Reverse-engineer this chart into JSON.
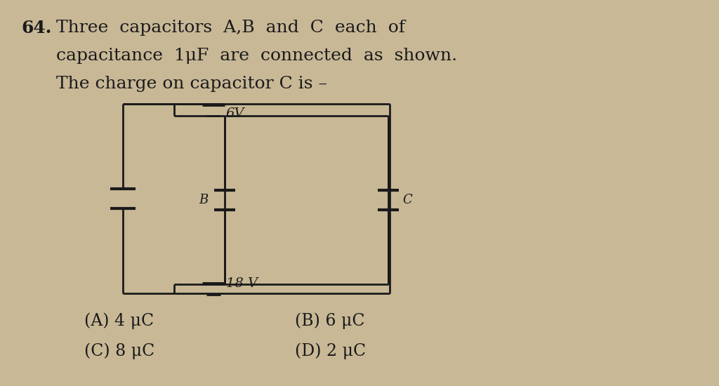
{
  "bg_color": "#c8b896",
  "text_color": "#1a1a1a",
  "circuit_color": "#1a1a1a",
  "question_number": "64.",
  "q_line1": "Three  capacitors  A,B  and  C  each  of",
  "q_line2": "capacitance  1μF  are  connected  as  shown.",
  "q_line3": "The charge on capacitor C is –",
  "voltage_top": "6V",
  "voltage_bot": "18 V",
  "label_B": "B",
  "label_C": "C",
  "choices": [
    {
      "label": "(A) 4 μC",
      "col": 0,
      "row": 0
    },
    {
      "label": "(B) 6 μC",
      "col": 1,
      "row": 0
    },
    {
      "label": "(C) 8 μC",
      "col": 0,
      "row": 1
    },
    {
      "label": "(D) 2 μC",
      "col": 1,
      "row": 1
    }
  ],
  "font_size_q": 18,
  "font_size_choices": 17,
  "font_size_circuit": 13
}
